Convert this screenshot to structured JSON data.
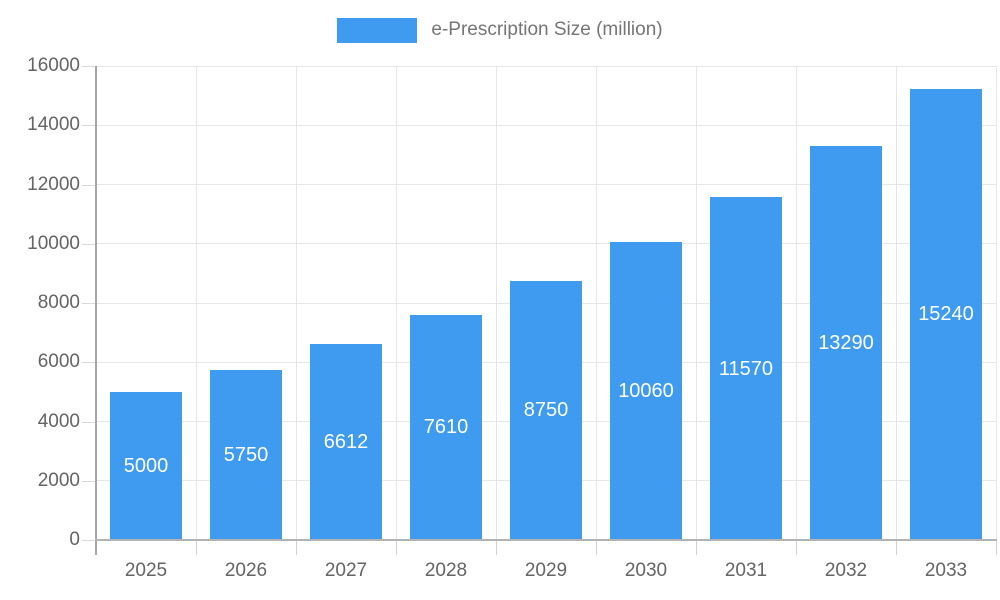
{
  "legend": {
    "label": "e-Prescription Size (million)"
  },
  "colors": {
    "bar": "#3e9bf0",
    "grid": "#e6e6e6",
    "y_axis_line": "#a6a6a6",
    "x_axis_line": "#b3b3b3",
    "y_tick": "#d9d9d9",
    "x_tick": "#cfcfcf",
    "axis_label": "#646464",
    "legend_text": "#757575",
    "bar_label": "#ffffff"
  },
  "chart_data": {
    "type": "bar",
    "title": "e-Prescription Size (million)",
    "categories": [
      "2025",
      "2026",
      "2027",
      "2028",
      "2029",
      "2030",
      "2031",
      "2032",
      "2033"
    ],
    "values": [
      5000,
      5750,
      6612,
      7610,
      8750,
      10060,
      11570,
      13290,
      15240
    ],
    "data_labels": [
      "5000",
      "5750",
      "6612",
      "7610",
      "8750",
      "10060",
      "11570",
      "13290",
      "15240"
    ],
    "y_tick_labels": [
      "0",
      "2000",
      "4000",
      "6000",
      "8000",
      "10000",
      "12000",
      "14000",
      "16000"
    ],
    "xlabel": "",
    "ylabel": "",
    "ylim": [
      0,
      16000
    ],
    "ytick_step": 2000,
    "grid": true,
    "legend_position": "top",
    "bar_color": "#3e9bf0"
  }
}
